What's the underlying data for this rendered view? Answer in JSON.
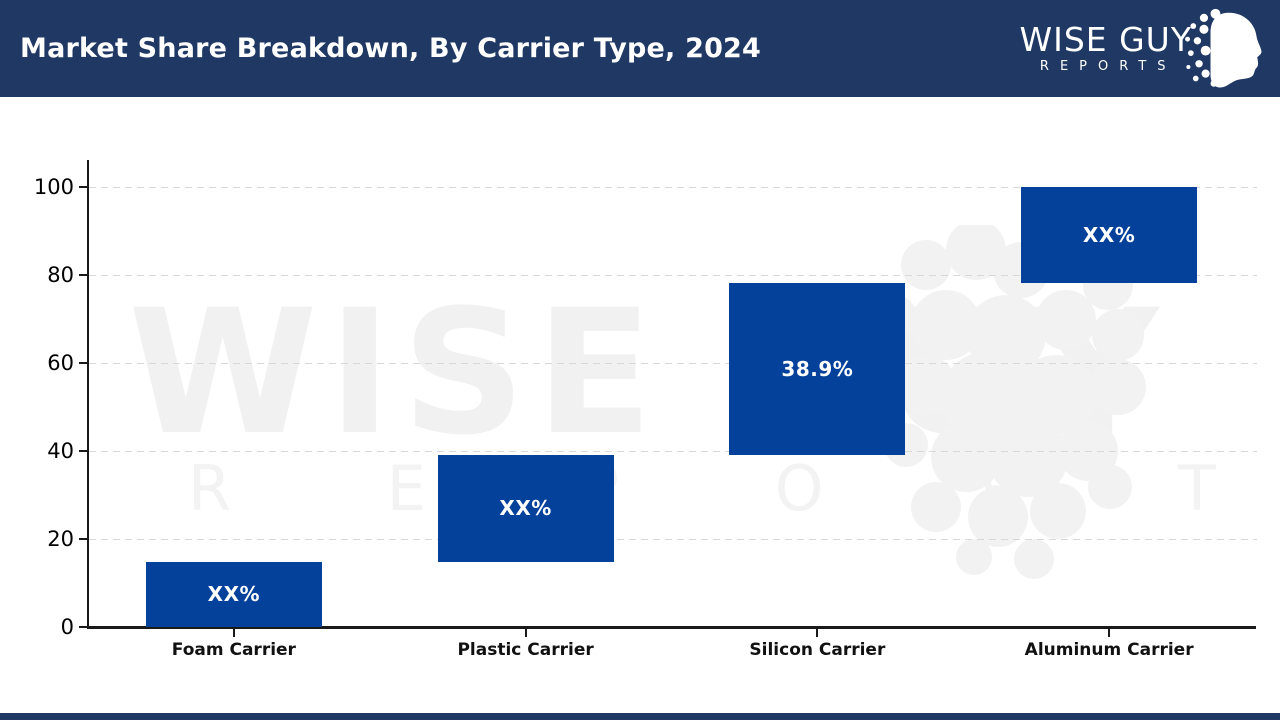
{
  "header": {
    "title": "Market Share Breakdown, By Carrier Type, 2024",
    "background_color": "#1F3864",
    "logo": {
      "wordmark": "WISE GUY",
      "subtitle": "REPORTS"
    }
  },
  "watermark": {
    "line1": "WISE GUY",
    "line2": "R E P O R T S"
  },
  "chart_data": {
    "type": "bar",
    "subtype": "waterfall",
    "title": "Market Share Breakdown, By Carrier Type, 2024",
    "categories": [
      "Foam Carrier",
      "Plastic Carrier",
      "Silicon Carrier",
      "Aluminum Carrier"
    ],
    "series": [
      {
        "category": "Foam Carrier",
        "start": 0,
        "end": 14.8,
        "label": "XX%"
      },
      {
        "category": "Plastic Carrier",
        "start": 14.8,
        "end": 39.2,
        "label": "XX%"
      },
      {
        "category": "Silicon Carrier",
        "start": 39.2,
        "end": 78.1,
        "label": "38.9%"
      },
      {
        "category": "Aluminum Carrier",
        "start": 78.1,
        "end": 100,
        "label": "XX%"
      }
    ],
    "yticks": [
      0,
      20,
      40,
      60,
      80,
      100
    ],
    "ylim": [
      0,
      106
    ],
    "xlabel": "",
    "ylabel": "",
    "grid": "horizontal-dashed",
    "legend": "none",
    "bar_color": "#04419A",
    "bar_label_color": "#FFFFFF",
    "grid_color": "#D8D8D8",
    "axis_color": "#1A1A1A"
  }
}
